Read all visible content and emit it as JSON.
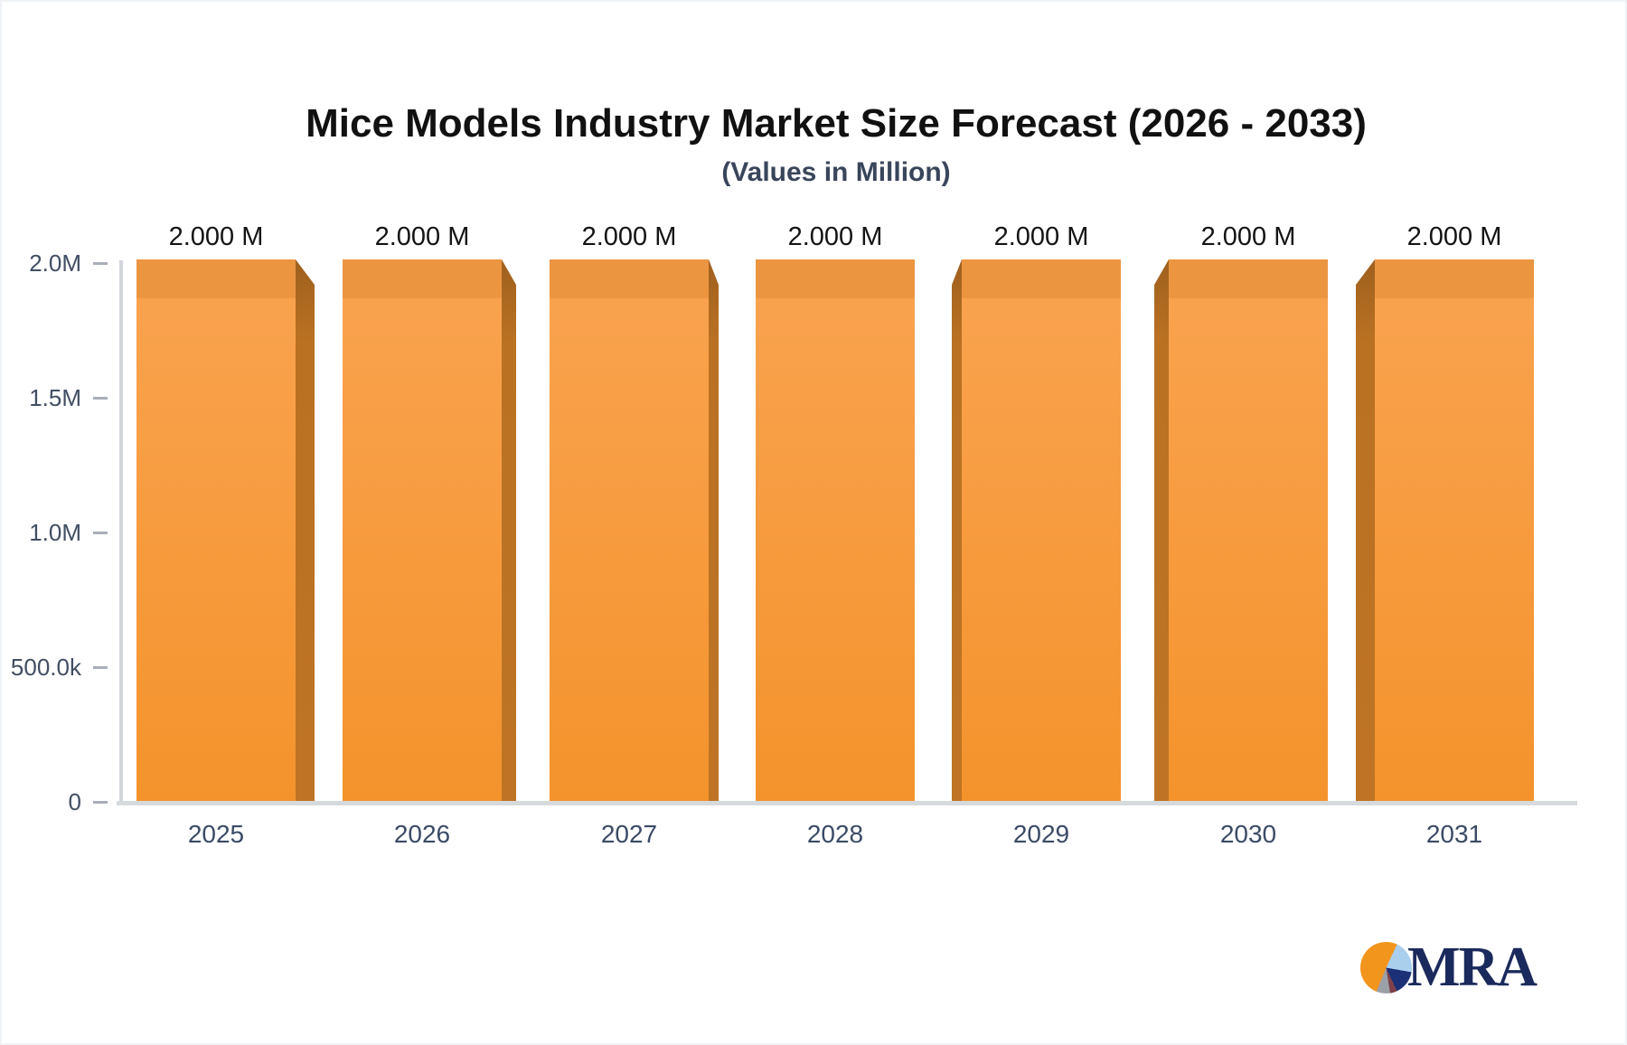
{
  "header": {
    "title": "Mice Models Industry Market Size Forecast (2026 - 2033)",
    "subtitle": "(Values in Million)"
  },
  "chart_data": {
    "type": "bar",
    "title": "Mice Models Industry Market Size Forecast (2026 - 2033)",
    "subtitle": "(Values in Million)",
    "unit": "Million",
    "categories": [
      "2025",
      "2026",
      "2027",
      "2028",
      "2029",
      "2030",
      "2031"
    ],
    "values": [
      2.0,
      2.0,
      2.0,
      2.0,
      2.0,
      2.0,
      2.0
    ],
    "bars": [
      {
        "category": "2025",
        "value": 2.0,
        "label": "2.000 M"
      },
      {
        "category": "2026",
        "value": 2.0,
        "label": "2.000 M"
      },
      {
        "category": "2027",
        "value": 2.0,
        "label": "2.000 M"
      },
      {
        "category": "2028",
        "value": 2.0,
        "label": "2.000 M"
      },
      {
        "category": "2029",
        "value": 2.0,
        "label": "2.000 M"
      },
      {
        "category": "2030",
        "value": 2.0,
        "label": "2.000 M"
      },
      {
        "category": "2031",
        "value": 2.0,
        "label": "2.000 M"
      }
    ],
    "y_axis": {
      "tick_labels": [
        "2.0M",
        "1.5M",
        "1.0M",
        "500.0k",
        "0"
      ],
      "range": [
        0,
        2000000
      ],
      "gridlines": false
    },
    "legend": "none",
    "value_label_position": "above-bar",
    "bar_style": "3d-center-perspective"
  },
  "colors": {
    "bar_face": "#F4953A",
    "bar_face_top_band": "#EC9541",
    "bar_face_gradient_bottom": "#F4932C",
    "bar_side_depth": "#BA7122",
    "axis_line": "#D5D9DC",
    "tick_mark": "#A9AFB8",
    "tick_text": "#414E63",
    "category_text": "#3B4B66",
    "value_text": "#141414",
    "title_text": "#111111",
    "subtitle_text": "#39455A",
    "logo_text": "#1B2A5C",
    "logo_pie_orange": "#F2951D",
    "logo_pie_lightblue": "#A9CFED",
    "logo_pie_navy": "#1B3076",
    "logo_pie_maroon": "#7E4149",
    "logo_pie_gray": "#9CA0A8"
  },
  "logo": {
    "text": "MRA"
  }
}
